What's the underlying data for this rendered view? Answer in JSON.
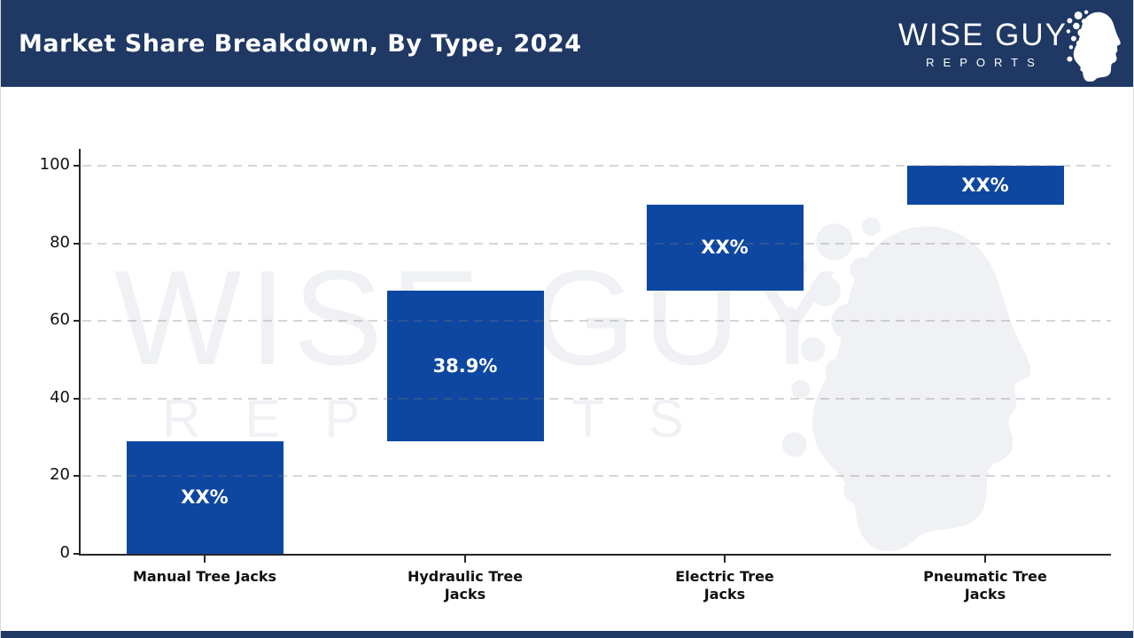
{
  "header": {
    "title": "Market Share Breakdown, By Type, 2024",
    "logo": {
      "line1": "WISE GUY",
      "line2": "REPORTS"
    }
  },
  "watermark": {
    "line1": "WISE GUY",
    "line2": "REPORTS"
  },
  "colors": {
    "header_bg": "#1f3864",
    "bar_fill": "#0d47a1",
    "bar_label": "#ffffff",
    "watermark": "#f0f1f4",
    "axis": "#262626"
  },
  "chart_data": {
    "type": "bar",
    "subtype": "floating-waterfall",
    "title": "Market Share Breakdown, By Type, 2024",
    "categories": [
      "Manual Tree Jacks",
      "Hydraulic Tree Jacks",
      "Electric Tree Jacks",
      "Pneumatic Tree Jacks"
    ],
    "category_lines": [
      [
        "Manual Tree Jacks"
      ],
      [
        "Hydraulic Tree",
        "Jacks"
      ],
      [
        "Electric Tree",
        "Jacks"
      ],
      [
        "Pneumatic Tree",
        "Jacks"
      ]
    ],
    "bars": [
      {
        "category": "Manual Tree Jacks",
        "start": 0,
        "end": 29,
        "value": 29,
        "label": "XX%"
      },
      {
        "category": "Hydraulic Tree Jacks",
        "start": 29,
        "end": 67.9,
        "value": 38.9,
        "label": "38.9%"
      },
      {
        "category": "Electric Tree Jacks",
        "start": 67.9,
        "end": 90,
        "value": 22.1,
        "label": "XX%"
      },
      {
        "category": "Pneumatic Tree Jacks",
        "start": 90,
        "end": 100,
        "value": 10,
        "label": "XX%"
      }
    ],
    "xlabel": "",
    "ylabel": "",
    "ylim": [
      0,
      100
    ],
    "yticks": [
      0,
      20,
      40,
      60,
      80,
      100
    ],
    "grid": "horizontal dashed",
    "legend": "none"
  }
}
